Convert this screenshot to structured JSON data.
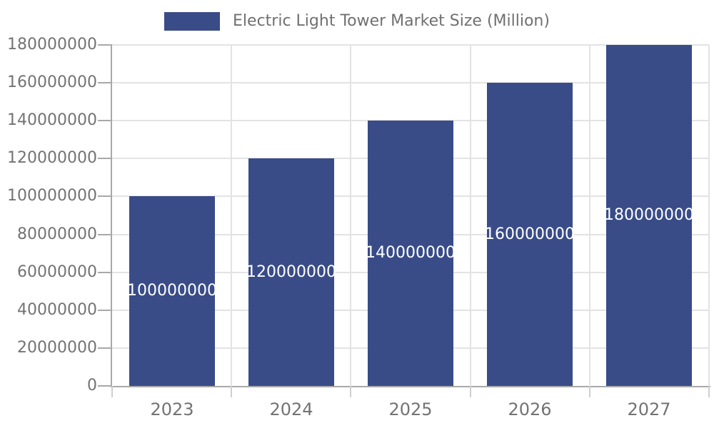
{
  "legend": {
    "label": "Electric Light Tower Market Size (Million)"
  },
  "chart_data": {
    "type": "bar",
    "title": "Electric Light Tower Market Size (Million)",
    "series_name": "Electric Light Tower Market Size (Million)",
    "categories": [
      "2023",
      "2024",
      "2025",
      "2026",
      "2027"
    ],
    "values": [
      100000000,
      120000000,
      140000000,
      160000000,
      180000000
    ],
    "value_labels": [
      "100000000",
      "120000000",
      "140000000",
      "160000000",
      "180000000"
    ],
    "y_ticks": [
      0,
      20000000,
      40000000,
      60000000,
      80000000,
      100000000,
      120000000,
      140000000,
      160000000,
      180000000
    ],
    "y_tick_labels": [
      "0",
      "20000000",
      "40000000",
      "60000000",
      "80000000",
      "100000000",
      "120000000",
      "140000000",
      "160000000",
      "180000000"
    ],
    "ylim": [
      0,
      180000000
    ],
    "xlabel": "",
    "ylabel": "",
    "grid": true,
    "legend_position": "top",
    "bar_label_position": "inside-center",
    "colors": {
      "bar": "#394c88",
      "bar_label": "#ffffff",
      "axis_text": "#737373",
      "legend_text": "#707070",
      "grid_line": "#e3e3e3",
      "axis_line": "#a8a8a8",
      "y_tick": "#a8a8a8",
      "x_tick": "#cfcfcf",
      "background": "#ffffff"
    }
  }
}
